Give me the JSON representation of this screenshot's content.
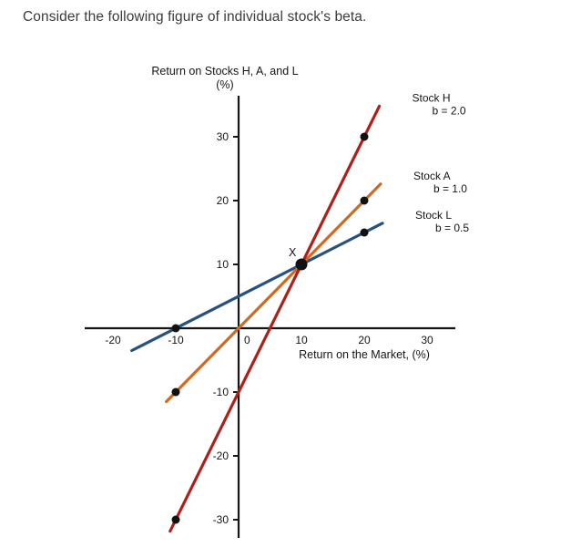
{
  "page": {
    "question_text": "Consider the following figure of individual stock's beta."
  },
  "chart_data": {
    "type": "line",
    "title": "Return on Stocks H, A, and L",
    "title_unit": "(%)",
    "xlabel": "Return on the Market, (%)",
    "xlim": [
      -22,
      34
    ],
    "ylim": [
      -34,
      36
    ],
    "x_ticks": [
      -20,
      -10,
      0,
      10,
      20,
      30
    ],
    "y_ticks": [
      30,
      20,
      10,
      -10,
      -20,
      -30
    ],
    "grid": false,
    "legend_position": "right-inline-labels",
    "axis_color": "#151515",
    "marker_color": "#111111",
    "crossing_point": {
      "x": 10,
      "y": 10,
      "label": "X"
    },
    "series": [
      {
        "name": "Stock H",
        "beta_label": "b = 2.0",
        "beta": 2.0,
        "color": "#b01e1a",
        "slope": 2,
        "intercept": -10,
        "x_range": [
          -10.9,
          22.4
        ],
        "markers": [
          [
            -10,
            -30
          ],
          [
            20,
            30
          ]
        ]
      },
      {
        "name": "Stock A",
        "beta_label": "b = 1.0",
        "beta": 1.0,
        "color": "#d2691e",
        "slope": 1,
        "intercept": 0,
        "x_range": [
          -11.5,
          22.6
        ],
        "markers": [
          [
            -10,
            -10
          ],
          [
            20,
            20
          ]
        ]
      },
      {
        "name": "Stock L",
        "beta_label": "b = 0.5",
        "beta": 0.5,
        "color": "#27517e",
        "slope": 0.5,
        "intercept": 5,
        "x_range": [
          -17,
          22.9
        ],
        "markers": [
          [
            -10,
            0
          ],
          [
            20,
            15
          ]
        ]
      }
    ]
  }
}
